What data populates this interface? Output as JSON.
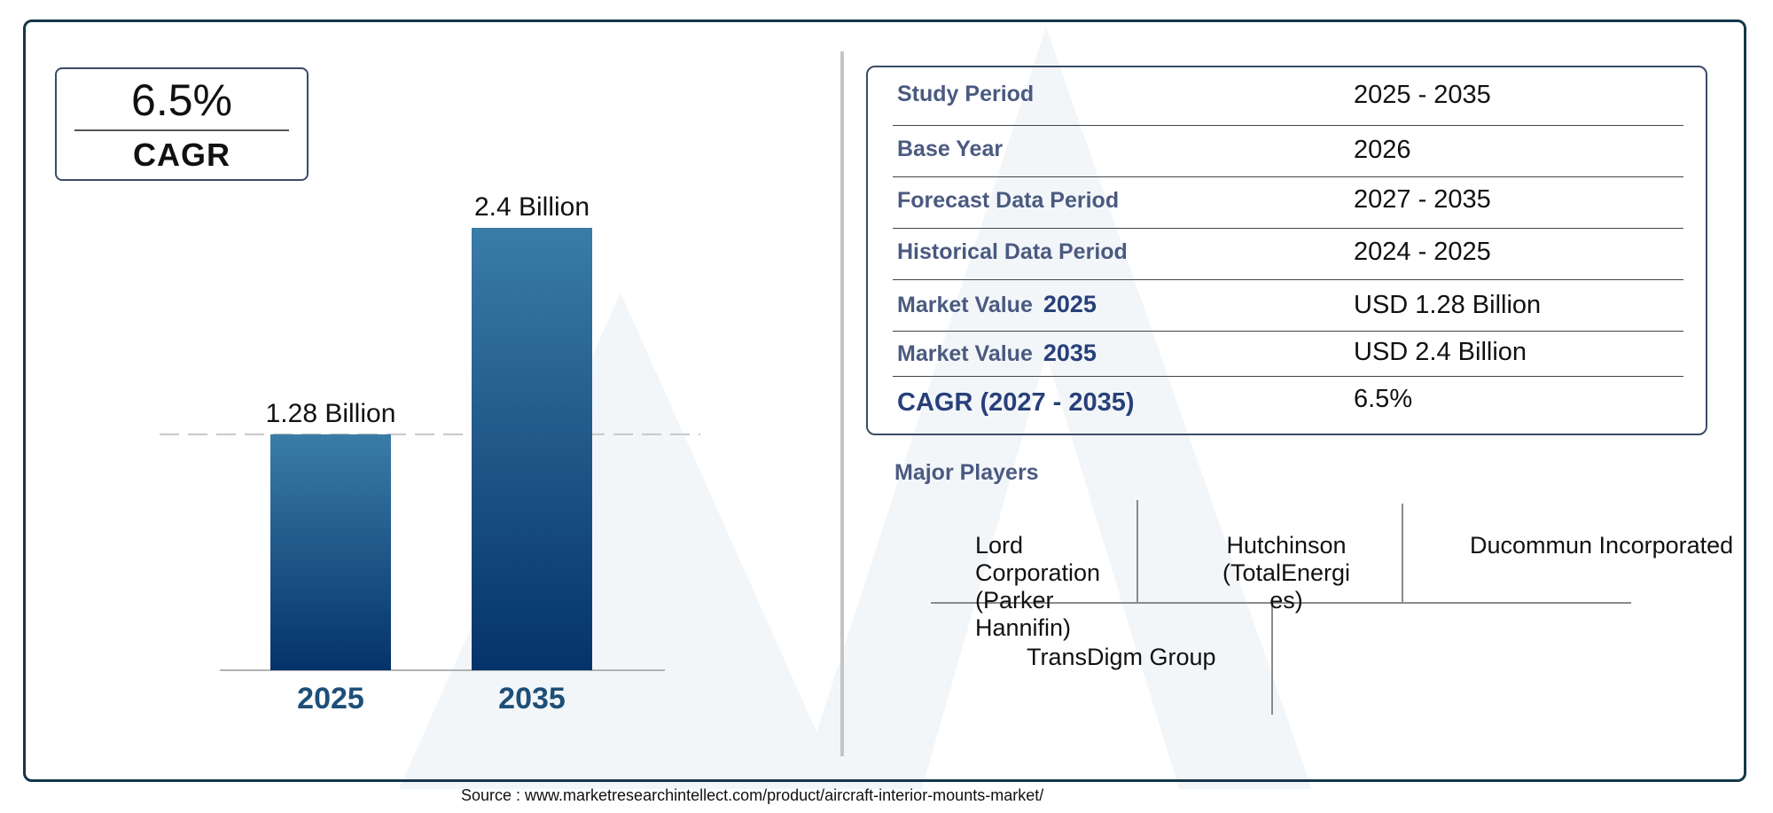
{
  "cagr_badge": {
    "value": "6.5%",
    "label": "CAGR"
  },
  "chart_data": {
    "type": "bar",
    "categories": [
      "2025",
      "2035"
    ],
    "values": [
      1.28,
      2.4
    ],
    "value_labels": [
      "1.28 Billion",
      "2.4 Billion"
    ],
    "title": "",
    "xlabel": "",
    "ylabel": "",
    "ylim": [
      0,
      2.4
    ],
    "grid": false,
    "reference_line_value": 1.28,
    "colors": {
      "bar_top": "#3a7ca8",
      "bar_bottom": "#04336a",
      "tick_label": "#1d4f78"
    }
  },
  "summary_table": {
    "rows": [
      {
        "label": "Study Period",
        "year": "",
        "value": "2025 - 2035"
      },
      {
        "label": "Base Year",
        "year": "",
        "value": "2026"
      },
      {
        "label": "Forecast Data Period",
        "year": "",
        "value": "2027 - 2035"
      },
      {
        "label": "Historical Data Period",
        "year": "",
        "value": "2024 - 2025"
      },
      {
        "label": "Market Value",
        "year": "2025",
        "value": "USD 1.28 Billion"
      },
      {
        "label": "Market Value",
        "year": "2035",
        "value": "USD 2.4 Billion"
      },
      {
        "label": "CAGR (2027 - 2035)",
        "year": "",
        "value": "6.5%"
      }
    ]
  },
  "major_players": {
    "title": "Major Players",
    "players": [
      "Lord Corporation (Parker Hannifin)",
      "Hutchinson (TotalEnergies)",
      "Ducommun Incorporated",
      "TransDigm Group"
    ]
  },
  "source": "Source : www.marketresearchintellect.com/product/aircraft-interior-mounts-market/"
}
